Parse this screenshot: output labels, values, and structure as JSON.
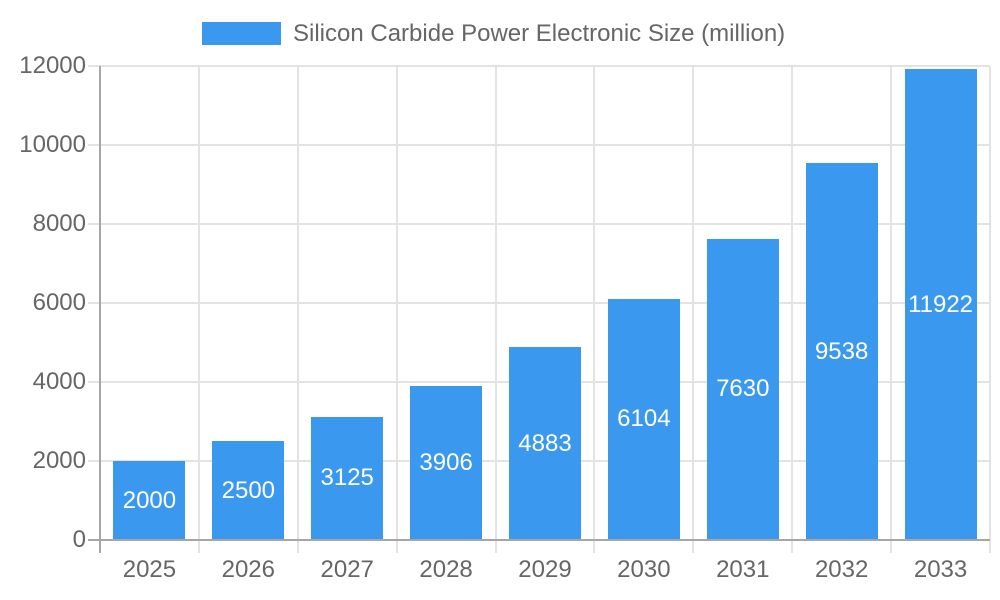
{
  "legend": {
    "label": "Silicon Carbide Power Electronic Size (million)"
  },
  "colors": {
    "bar": "#3A99EE",
    "grid_line": "#E3E3E3",
    "axis_line": "#A6A6A6",
    "axis_label": "#666666",
    "bar_label": "#FFFFFF",
    "legend_text": "#666666",
    "background": "#FFFFFF"
  },
  "chart_data": {
    "type": "bar",
    "title": "Silicon Carbide Power Electronic Size (million)",
    "series_name": "Silicon Carbide Power Electronic Size (million)",
    "categories": [
      "2025",
      "2026",
      "2027",
      "2028",
      "2029",
      "2030",
      "2031",
      "2032",
      "2033"
    ],
    "values": [
      2000,
      2500,
      3125,
      3906,
      4883,
      6104,
      7630,
      9538,
      11922
    ],
    "xlabel": "",
    "ylabel": "",
    "ylim": [
      0,
      12000
    ],
    "y_ticks": [
      0,
      2000,
      4000,
      6000,
      8000,
      10000,
      12000
    ],
    "grid": true,
    "legend_position": "top",
    "value_labels": "inside-center"
  }
}
